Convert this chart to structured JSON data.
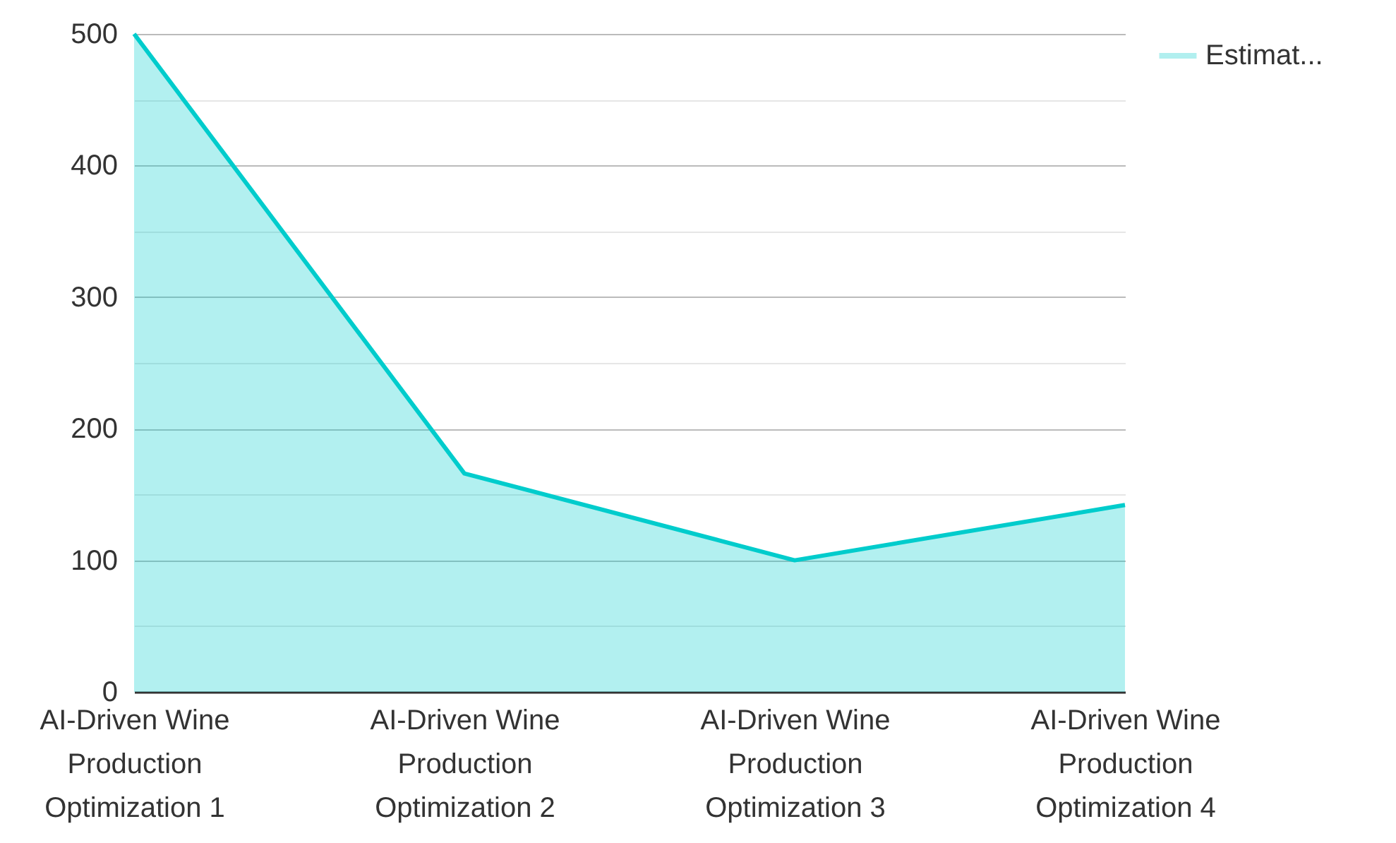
{
  "chart_data": {
    "type": "area",
    "categories": [
      "AI-Driven Wine Production Optimization 1",
      "AI-Driven Wine Production Optimization 2",
      "AI-Driven Wine Production Optimization 3",
      "AI-Driven Wine Production Optimization 4"
    ],
    "series": [
      {
        "name": "Estimat...",
        "color": "#00cccc",
        "values": [
          500,
          166,
          100,
          142
        ]
      }
    ],
    "ylim": [
      0,
      500
    ],
    "yticks": [
      0,
      {
        "value": 50,
        "label": null
      },
      100,
      {
        "value": 150,
        "label": null
      },
      200,
      {
        "value": 250,
        "label": null
      },
      300,
      {
        "value": 350,
        "label": null
      },
      400,
      {
        "value": 450,
        "label": null
      },
      500
    ],
    "grid": "y",
    "legend": "top right",
    "marker": "none",
    "line_style": "solid"
  }
}
